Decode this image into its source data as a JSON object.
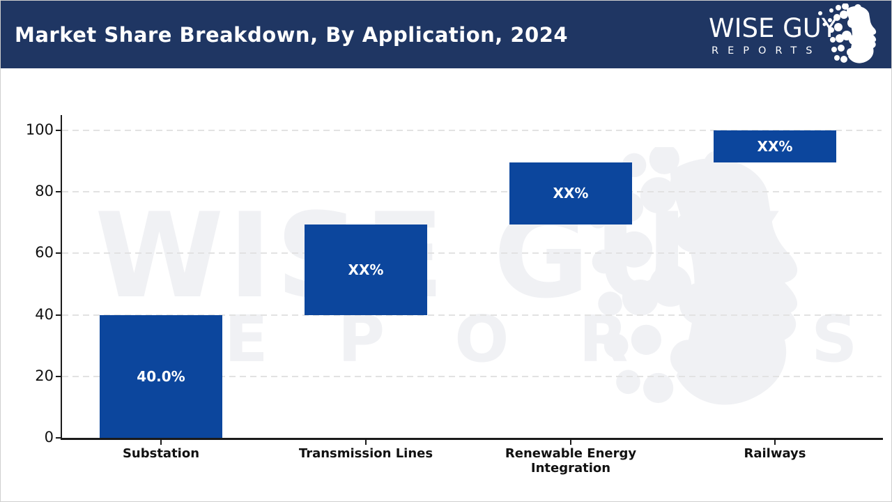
{
  "header": {
    "title": "Market Share Breakdown, By Application, 2024",
    "bg_color": "#1f3663",
    "logo": {
      "line1": "WISE GUY",
      "line2": "REPORTS"
    }
  },
  "watermark": {
    "line1": "WISE GUY",
    "line2": "R E P O R T S"
  },
  "chart_data": {
    "type": "bar",
    "subtype": "waterfall",
    "title": "Market Share Breakdown, By Application, 2024",
    "xlabel": "",
    "ylabel": "",
    "categories": [
      "Substation",
      "Transmission Lines",
      "Renewable Energy Integration",
      "Railways"
    ],
    "segments": [
      {
        "category": "Substation",
        "start": 0,
        "end": 40,
        "label": "40.0%"
      },
      {
        "category": "Transmission Lines",
        "start": 40,
        "end": 69.4,
        "label": "XX%"
      },
      {
        "category": "Renewable Energy Integration",
        "start": 69.4,
        "end": 89.6,
        "label": "XX%"
      },
      {
        "category": "Railways",
        "start": 89.6,
        "end": 100,
        "label": "XX%"
      }
    ],
    "y_ticks": [
      0,
      20,
      40,
      60,
      80,
      100
    ],
    "ylim": [
      0,
      105
    ],
    "grid": true,
    "legend": false,
    "bar_color": "#0c469d",
    "gridline_color": "#e2e2e2"
  }
}
